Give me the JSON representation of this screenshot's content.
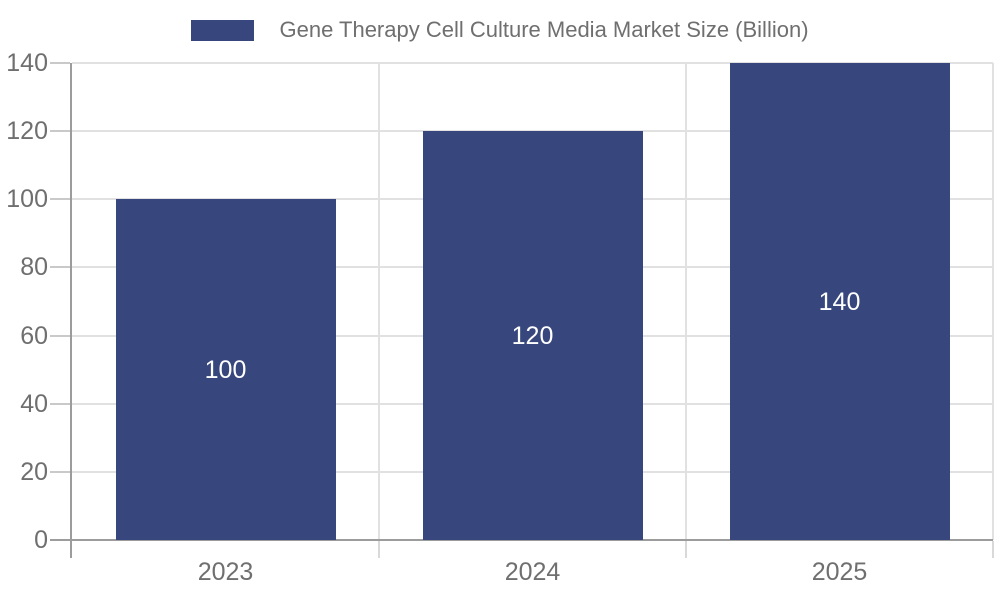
{
  "chart_data": {
    "type": "bar",
    "title": "Gene Therapy Cell Culture Media Market Size (Billion)",
    "categories": [
      "2023",
      "2024",
      "2025"
    ],
    "values": [
      100,
      120,
      140
    ],
    "value_labels": [
      "100",
      "120",
      "140"
    ],
    "xlabel": "",
    "ylabel": "",
    "ylim": [
      0,
      140
    ],
    "yticks": [
      0,
      20,
      40,
      60,
      80,
      100,
      120,
      140
    ],
    "ytick_labels": [
      "0",
      "20",
      "40",
      "60",
      "80",
      "100",
      "120",
      "140"
    ],
    "grid": true,
    "legend_position": "top",
    "colors": {
      "bar": "#37477D",
      "value_label": "#FFFFFF",
      "gridline": "#E1E1E1",
      "axis": "#9C9C9C",
      "tick_mark": "#C9C9C9",
      "boundary_tick_mark": "#D9D9D9",
      "tick_label_text": "#6F6F6F",
      "legend_text": "#6F6F6F"
    }
  },
  "legend": {
    "label": "Gene Therapy Cell Culture Media Market Size (Billion)"
  }
}
